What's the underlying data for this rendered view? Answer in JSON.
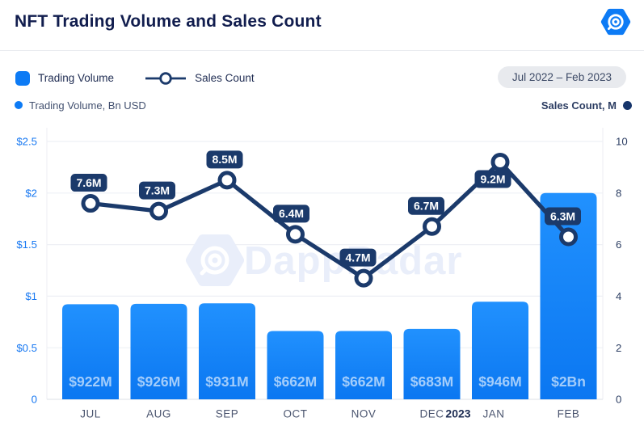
{
  "header": {
    "title": "NFT Trading Volume and Sales Count"
  },
  "legend": {
    "trading_volume_label": "Trading Volume",
    "sales_count_label": "Sales Count",
    "period": "Jul 2022 – Feb 2023"
  },
  "axis_captions": {
    "left": "Trading Volume, Bn USD",
    "right": "Sales Count, M"
  },
  "watermark": "DappRadar",
  "colors": {
    "bar_top": "#2191fe",
    "bar_bottom": "#0b77f1",
    "bar_blue": "#0d7bf5",
    "navy": "#1b3a6b",
    "title": "#111d4e",
    "tick_left": "#1778f2",
    "tick_right": "#2c3e63",
    "month": "#4b556f",
    "year": "#202f55",
    "grid": "#eef0f5",
    "axis_base": "#e3e6ec",
    "plot_border": "#eceef3",
    "watermark": "#e9eefa",
    "bar_label": "rgba(255,255,255,0.62)"
  },
  "chart_data": {
    "type": "combo_bar_line",
    "title": "NFT Trading Volume and Sales Count",
    "period": "Jul 2022 – Feb 2023",
    "categories": [
      "JUL",
      "AUG",
      "SEP",
      "OCT",
      "NOV",
      "DEC",
      "JAN",
      "FEB"
    ],
    "year_break": {
      "label": "2023",
      "before_index": 6
    },
    "series": [
      {
        "name": "Trading Volume",
        "type": "bar",
        "axis": "left",
        "unit": "Bn USD",
        "values": [
          0.922,
          0.926,
          0.931,
          0.662,
          0.662,
          0.683,
          0.946,
          2.0
        ],
        "labels": [
          "$922M",
          "$926M",
          "$931M",
          "$662M",
          "$662M",
          "$683M",
          "$946M",
          "$2Bn"
        ]
      },
      {
        "name": "Sales Count",
        "type": "line",
        "axis": "right",
        "unit": "M",
        "values": [
          7.6,
          7.3,
          8.5,
          6.4,
          4.7,
          6.7,
          9.2,
          6.3
        ],
        "labels": [
          "7.6M",
          "7.3M",
          "8.5M",
          "6.4M",
          "4.7M",
          "6.7M",
          "9.2M",
          "6.3M"
        ],
        "label_side": [
          "above",
          "above",
          "above",
          "above",
          "above",
          "above",
          "below",
          "above"
        ]
      }
    ],
    "left_axis": {
      "label": "Trading Volume, Bn USD",
      "ticks": [
        "$2.5",
        "$2",
        "$1.5",
        "$1",
        "$0.5",
        "0"
      ],
      "min": 0,
      "max": 2.5
    },
    "right_axis": {
      "label": "Sales Count, M",
      "ticks": [
        "10",
        "8",
        "6",
        "4",
        "2",
        "0"
      ],
      "min": 0,
      "max": 10
    },
    "grid": true,
    "legend_position": "top-left"
  }
}
